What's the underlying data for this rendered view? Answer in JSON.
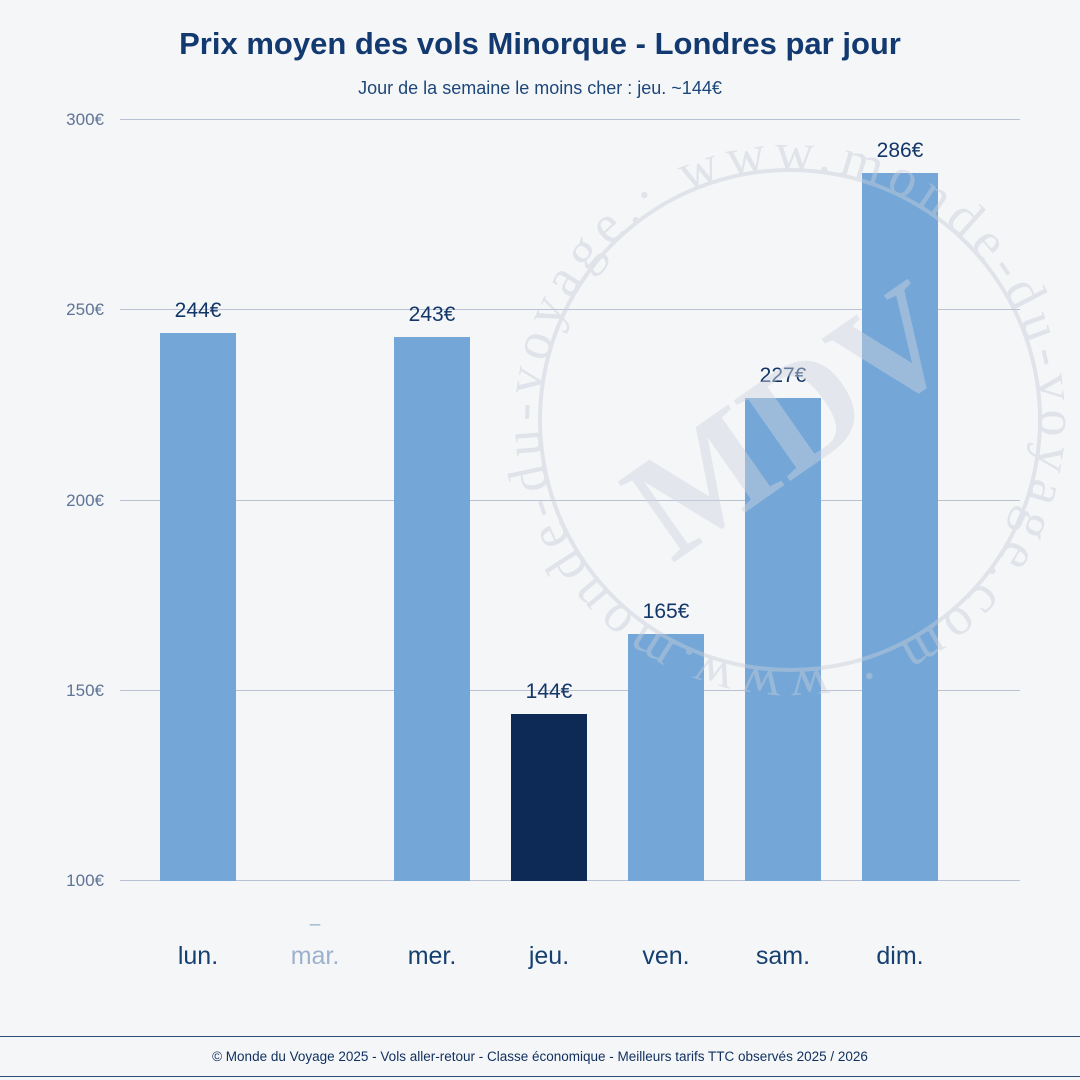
{
  "header": {
    "title": "Prix moyen des vols Minorque - Londres par jour",
    "subtitle": "Jour de la semaine le moins cher : jeu. ~144€"
  },
  "chart_data": {
    "type": "bar",
    "title": "Prix moyen des vols Minorque - Londres par jour",
    "subtitle": "Jour de la semaine le moins cher : jeu. ~144€",
    "categories": [
      "lun.",
      "mar.",
      "mer.",
      "jeu.",
      "ven.",
      "sam.",
      "dim."
    ],
    "values": [
      244,
      null,
      243,
      144,
      165,
      227,
      286
    ],
    "value_labels": [
      "244€",
      "",
      "243€",
      "144€",
      "165€",
      "227€",
      "286€"
    ],
    "missing_marker": "–",
    "yticks": [
      {
        "value": 300,
        "label": "300€"
      },
      {
        "value": 250,
        "label": "250€"
      },
      {
        "value": 200,
        "label": "200€"
      },
      {
        "value": 150,
        "label": "150€"
      },
      {
        "value": 100,
        "label": "100€"
      }
    ],
    "ylim": [
      100,
      300
    ],
    "grid": true,
    "legend": "none",
    "bar_color": "#74a7d8",
    "highlight_color": "#0d2956",
    "highlight_index": 3,
    "muted_label_index": 1
  },
  "watermark": {
    "circle_text": "· www.monde-du-voyage.com · www.monde-du-voyage.com ·",
    "center_text": "MDV"
  },
  "footer": {
    "text": "© Monde du Voyage 2025 - Vols aller-retour - Classe économique - Meilleurs tarifs TTC observés 2025 / 2026"
  }
}
